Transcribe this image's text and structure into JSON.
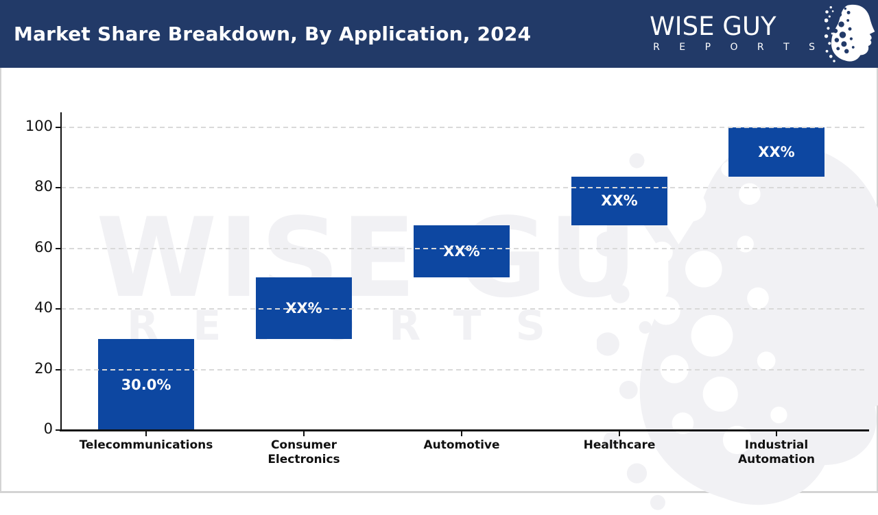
{
  "header": {
    "title": "Market Share Breakdown, By Application, 2024",
    "logo": {
      "line1": "WISE GUY",
      "line2": "R E P O R T S"
    }
  },
  "watermark": {
    "line1": "WISE GUY",
    "line2": "REPORTS"
  },
  "colors": {
    "header_bg": "#223A68",
    "bar": "#0D47A1",
    "axis": "#111111",
    "grid": "#d9d9d9",
    "watermark": "#f1f1f4",
    "value_label": "#ffffff"
  },
  "chart_data": {
    "type": "bar",
    "subtype": "waterfall",
    "title": "Market Share Breakdown, By Application, 2024",
    "xlabel": "",
    "ylabel": "",
    "ylim": [
      0,
      105
    ],
    "yticks": [
      0,
      20,
      40,
      60,
      80,
      100
    ],
    "grid": "horizontal-dashed",
    "legend": "none",
    "categories": [
      "Telecommunications",
      "Consumer\nElectronics",
      "Automotive",
      "Healthcare",
      "Industrial\nAutomation"
    ],
    "segments": [
      {
        "category": "Telecommunications",
        "label": "30.0%",
        "start": 0,
        "end": 30.0
      },
      {
        "category": "Consumer Electronics",
        "label": "XX%",
        "start": 30.0,
        "end": 50.5
      },
      {
        "category": "Automotive",
        "label": "XX%",
        "start": 50.5,
        "end": 67.7
      },
      {
        "category": "Healthcare",
        "label": "XX%",
        "start": 67.7,
        "end": 83.8
      },
      {
        "category": "Industrial Automation",
        "label": "XX%",
        "start": 83.8,
        "end": 100.0
      }
    ]
  }
}
